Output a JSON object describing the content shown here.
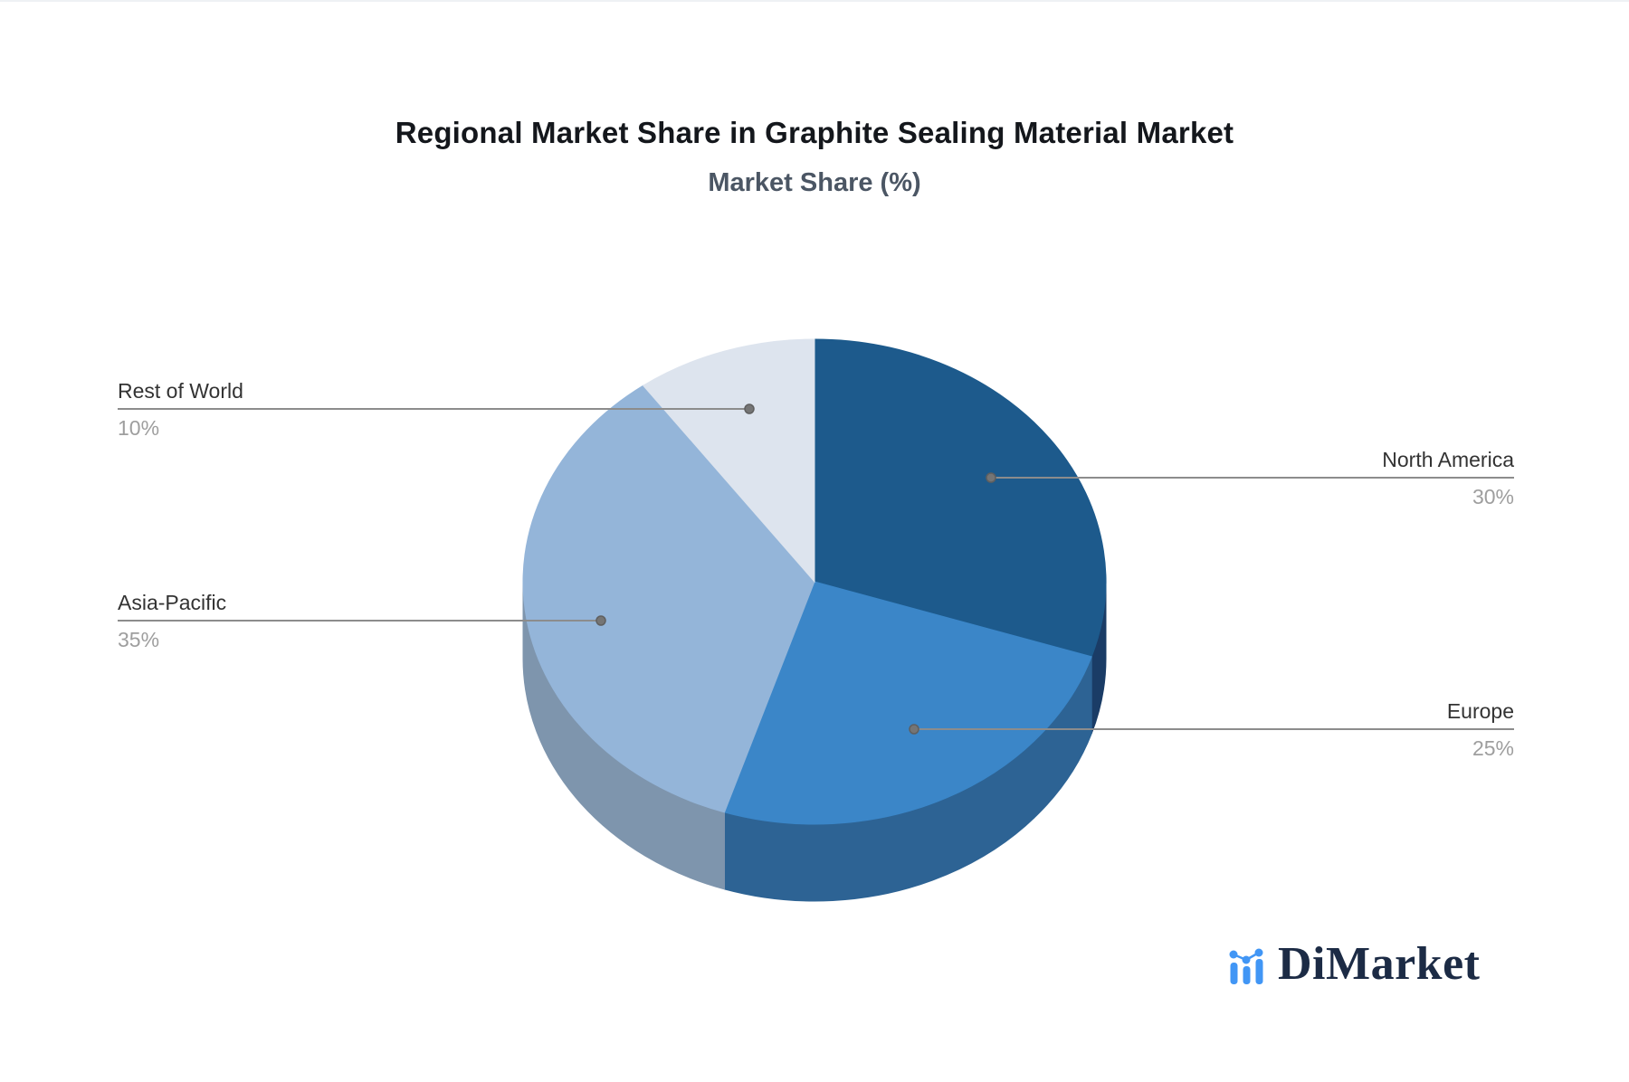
{
  "header": {
    "title": "Regional Market Share in Graphite Sealing Material Market",
    "subtitle": "Market Share (%)"
  },
  "chart_data": {
    "type": "pie",
    "title": "Regional Market Share in Graphite Sealing Material Market",
    "subtitle": "Market Share (%)",
    "unit": "%",
    "style": "3d-pie",
    "start_angle_deg": 0,
    "direction": "clockwise",
    "legend_position": "callout-labels",
    "slices": [
      {
        "label": "North America",
        "value": 30,
        "display": "30%",
        "color": "#1d5a8c",
        "side_color": "#1a3c66",
        "label_side": "right"
      },
      {
        "label": "Europe",
        "value": 25,
        "display": "25%",
        "color": "#3b86c8",
        "side_color": "#2d6394",
        "label_side": "right"
      },
      {
        "label": "Asia-Pacific",
        "value": 35,
        "display": "35%",
        "color": "#94b5d9",
        "side_color": "#7e95ad",
        "label_side": "left"
      },
      {
        "label": "Rest of World",
        "value": 10,
        "display": "10%",
        "color": "#dde4ee",
        "side_color": "#b9c6d6",
        "label_side": "left"
      }
    ],
    "colors": {
      "label_text": "#333333",
      "value_text": "#9e9e9e",
      "leader_line": "#8c8c8c",
      "leader_dot": "#757575",
      "title_text": "#14171c",
      "subtitle_text": "#4b5664"
    }
  },
  "branding": {
    "name": "DiMarket",
    "text_color": "#1c2b45",
    "icon_color": "#4196f5"
  }
}
